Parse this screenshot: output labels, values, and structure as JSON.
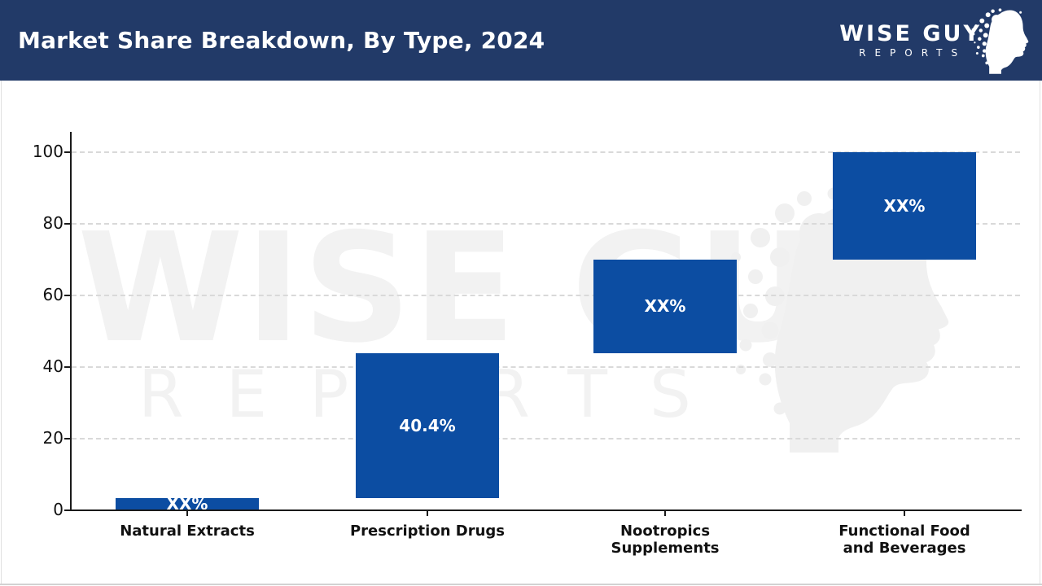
{
  "header": {
    "title": "Market Share Breakdown, By Type, 2024",
    "logo": {
      "name": "Wise Guy Reports",
      "line1": "WISE GUY",
      "line2": "REPORTS"
    }
  },
  "watermark": {
    "line1": "WISE GUY",
    "line2": "REPORTS"
  },
  "chart_data": {
    "type": "bar",
    "variant": "waterfall",
    "title": "Market Share Breakdown, By Type, 2024",
    "categories": [
      "Natural Extracts",
      "Prescription Drugs",
      "Nootropics Supplements",
      "Functional Food and Beverages"
    ],
    "category_label_lines": [
      [
        "Natural Extracts"
      ],
      [
        "Prescription Drugs"
      ],
      [
        "Nootropics",
        "Supplements"
      ],
      [
        "Functional Food",
        "and Beverages"
      ]
    ],
    "segments": [
      {
        "category": "Natural Extracts",
        "start": 0,
        "end": 3.5,
        "value_label": "XX%"
      },
      {
        "category": "Prescription Drugs",
        "start": 3.5,
        "end": 43.9,
        "value_label": "40.4%"
      },
      {
        "category": "Nootropics Supplements",
        "start": 43.9,
        "end": 70,
        "value_label": "XX%"
      },
      {
        "category": "Functional Food and Beverages",
        "start": 70,
        "end": 100,
        "value_label": "XX%"
      }
    ],
    "ylim": [
      0,
      100
    ],
    "yticks": [
      0,
      20,
      40,
      60,
      80,
      100
    ],
    "xlabel": "",
    "ylabel": "",
    "legend": "none",
    "grid": {
      "horizontal": true,
      "style": "dashed",
      "color": "#d9d9d9"
    },
    "bar_color": "#0C4DA2",
    "bar_label_color": "#ffffff",
    "axis_color": "#1a1a1a",
    "header_bg_color": "#223A68",
    "watermark_color": "#f2f2f2"
  }
}
